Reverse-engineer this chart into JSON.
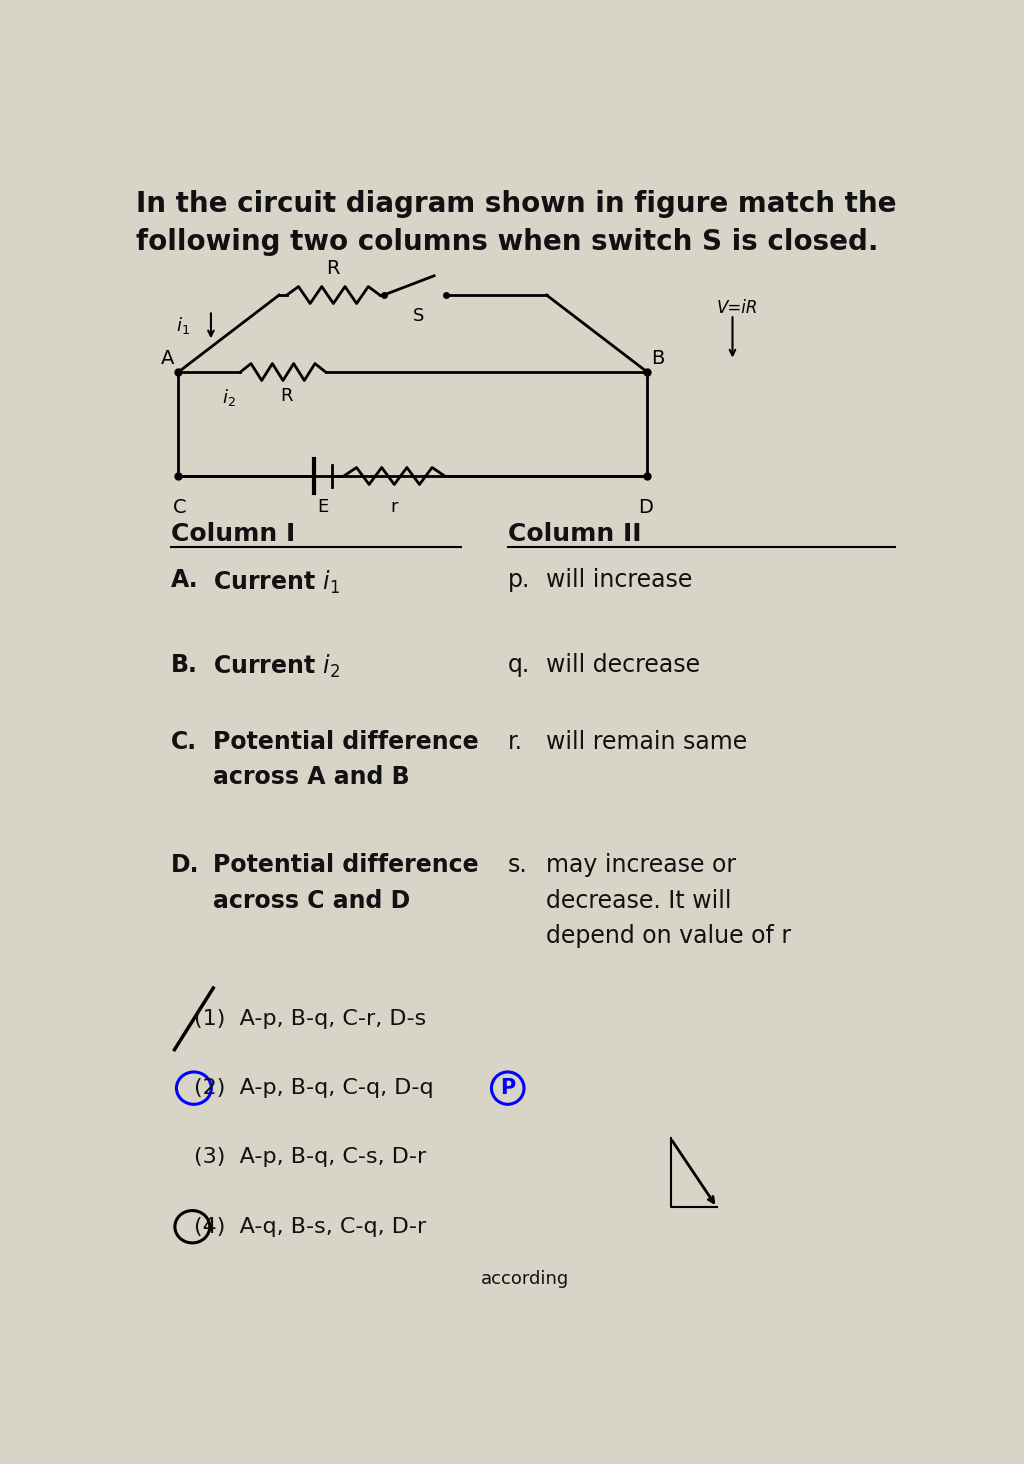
{
  "title_line1": "In the circuit diagram shown in figure match the",
  "title_line2": "following two columns when switch S is closed.",
  "bg_color": "#d8d4c8",
  "text_color": "#111111",
  "col1_header": "Column I",
  "col2_header": "Column II",
  "answers": [
    "(1)  A-p, B-q, C-r, D-s",
    "(2)  A-p, B-q, C-q, D-q",
    "(3)  A-p, B-q, C-s, D-r",
    "(4)  A-q, B-s, C-q, D-r"
  ]
}
